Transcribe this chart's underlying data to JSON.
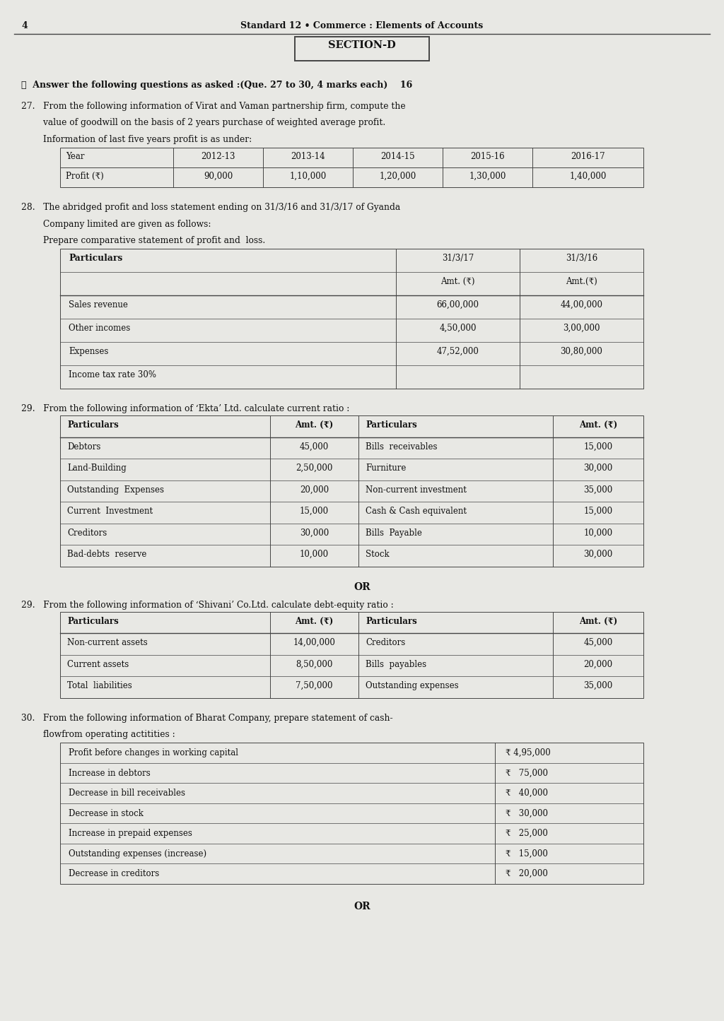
{
  "page_num": "4",
  "header": "Standard 12 • Commerce : Elements of Accounts",
  "section": "SECTION-D",
  "bullet_line": "❖  Answer the following questions as asked :(Que. 27 to 30, 4 marks each)    16",
  "q27_text1": "27.   From the following information of Virat and Vaman partnership firm, compute the",
  "q27_text2": "        value of goodwill on the basis of 2 years purchase of weighted average profit.",
  "q27_text3": "        Information of last five years profit is as under:",
  "q27_table": {
    "headers": [
      "Year",
      "2012-13",
      "2013-14",
      "2014-15",
      "2015-16",
      "2016-17"
    ],
    "row": [
      "Profit (₹)",
      "90,000",
      "1,10,000",
      "1,20,000",
      "1,30,000",
      "1,40,000"
    ]
  },
  "q28_text1": "28.   The abridged profit and loss statement ending on 31/3/16 and 31/3/17 of Gyanda",
  "q28_text2": "        Company limited are given as follows:",
  "q28_text3": "        Prepare comparative statement of profit and  loss.",
  "q28_table": {
    "rows": [
      [
        "Sales revenue",
        "66,00,000",
        "44,00,000"
      ],
      [
        "Other incomes",
        "4,50,000",
        "3,00,000"
      ],
      [
        "Expenses",
        "47,52,000",
        "30,80,000"
      ],
      [
        "Income tax rate 30%",
        "",
        ""
      ]
    ]
  },
  "q29a_text1": "29.   From the following information of ‘Ekta’ Ltd. calculate current ratio :",
  "q29a_table": {
    "headers": [
      "Particulars",
      "Amt. (₹)",
      "Particulars",
      "Amt. (₹)"
    ],
    "rows": [
      [
        "Debtors",
        "45,000",
        "Bills  receivables",
        "15,000"
      ],
      [
        "Land-Building",
        "2,50,000",
        "Furniture",
        "30,000"
      ],
      [
        "Outstanding  Expenses",
        "20,000",
        "Non-current investment",
        "35,000"
      ],
      [
        "Current  Investment",
        "15,000",
        "Cash & Cash equivalent",
        "15,000"
      ],
      [
        "Creditors",
        "30,000",
        "Bills  Payable",
        "10,000"
      ],
      [
        "Bad-debts  reserve",
        "10,000",
        "Stock",
        "30,000"
      ]
    ]
  },
  "or_text": "OR",
  "q29b_text1": "29.   From the following information of ‘Shivani’ Co.Ltd. calculate debt-equity ratio :",
  "q29b_table": {
    "headers": [
      "Particulars",
      "Amt. (₹)",
      "Particulars",
      "Amt. (₹)"
    ],
    "rows": [
      [
        "Non-current assets",
        "14,00,000",
        "Creditors",
        "45,000"
      ],
      [
        "Current assets",
        "8,50,000",
        "Bills  payables",
        "20,000"
      ],
      [
        "Total  liabilities",
        "7,50,000",
        "Outstanding expenses",
        "35,000"
      ]
    ]
  },
  "q30_text1": "30.   From the following information of Bharat Company, prepare statement of cash-",
  "q30_text2": "        flowfrom operating actitities :",
  "q30_table": {
    "rows": [
      [
        "Profit before changes in working capital",
        "₹ 4,95,000"
      ],
      [
        "Increase in debtors",
        "₹   75,000"
      ],
      [
        "Decrease in bill receivables",
        "₹   40,000"
      ],
      [
        "Decrease in stock",
        "₹   30,000"
      ],
      [
        "Increase in prepaid expenses",
        "₹   25,000"
      ],
      [
        "Outstanding expenses (increase)",
        "₹   15,000"
      ],
      [
        "Decrease in creditors",
        "₹   20,000"
      ]
    ]
  },
  "or2_text": "OR",
  "bg_color": "#e8e8e4",
  "text_color": "#111111"
}
